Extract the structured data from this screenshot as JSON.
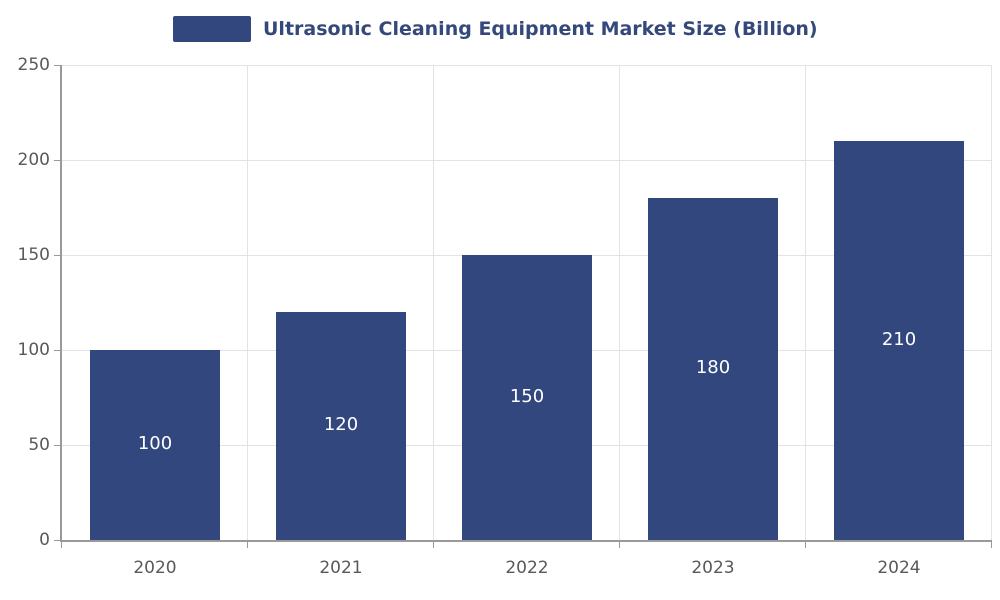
{
  "legend": {
    "label": "Ultrasonic Cleaning Equipment Market Size (Billion)"
  },
  "colors": {
    "bar": "#31477E",
    "title_text": "#34497A",
    "axis_line": "#999999",
    "grid_line": "#e3e3e3",
    "tick_label": "#595959",
    "bar_label": "#ffffff"
  },
  "chart_data": {
    "type": "bar",
    "title": "Ultrasonic Cleaning Equipment Market Size (Billion)",
    "categories": [
      "2020",
      "2021",
      "2022",
      "2023",
      "2024"
    ],
    "values": [
      100,
      120,
      150,
      180,
      210
    ],
    "xlabel": "",
    "ylabel": "",
    "ylim": [
      0,
      250
    ],
    "ytick_step": 50,
    "ytick_labels": [
      "0",
      "50",
      "100",
      "150",
      "200",
      "250"
    ],
    "grid": true,
    "legend_position": "top",
    "bar_value_labels_inside": true
  }
}
